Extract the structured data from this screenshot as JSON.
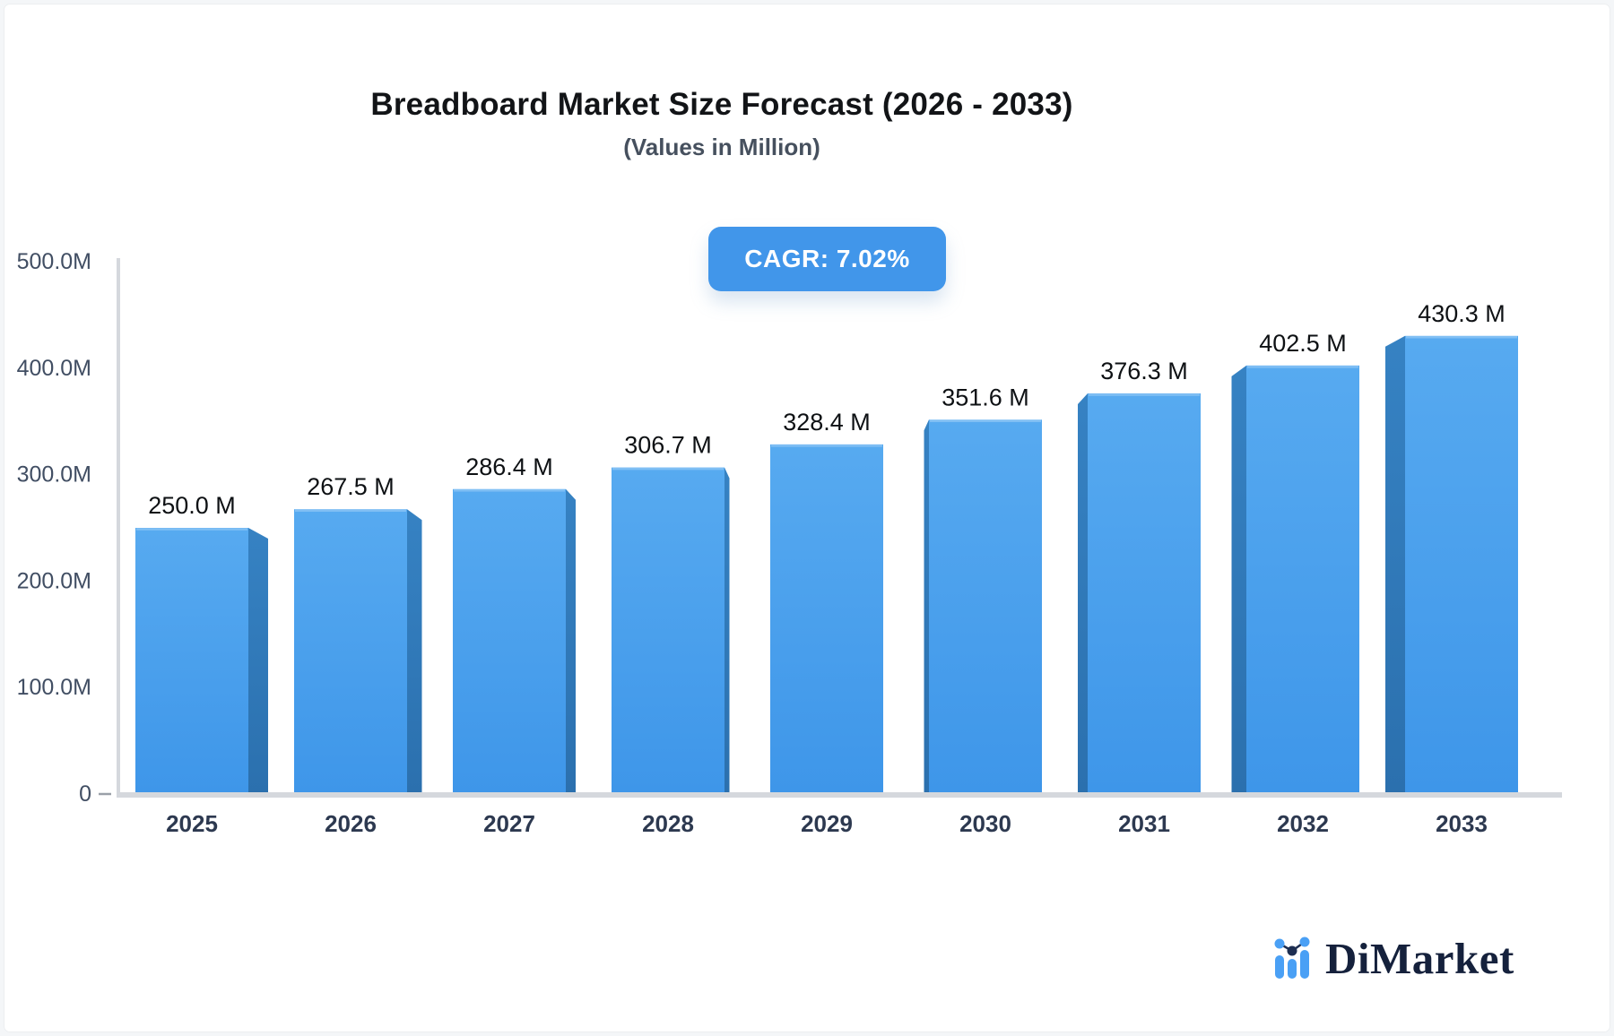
{
  "header": {
    "title": "Breadboard Market Size Forecast (2026 - 2033)",
    "subtitle": "(Values in Million)",
    "cagr_badge": "CAGR: 7.02%"
  },
  "chart_data": {
    "type": "bar",
    "title": "Breadboard Market Size Forecast (2026 - 2033)",
    "subtitle": "(Values in Million)",
    "unit": "Million",
    "cagr_percent": "7.02%",
    "categories": [
      "2025",
      "2026",
      "2027",
      "2028",
      "2029",
      "2030",
      "2031",
      "2032",
      "2033"
    ],
    "values": [
      250.0,
      267.5,
      286.4,
      306.7,
      328.4,
      351.6,
      376.3,
      402.5,
      430.3
    ],
    "value_labels": [
      "250.0 M",
      "267.5 M",
      "286.4 M",
      "306.7 M",
      "328.4 M",
      "351.6 M",
      "376.3 M",
      "402.5 M",
      "430.3 M"
    ],
    "y_ticks": [
      {
        "value": 0,
        "label": "0"
      },
      {
        "value": 100,
        "label": "100.0M"
      },
      {
        "value": 200,
        "label": "200.0M"
      },
      {
        "value": 300,
        "label": "300.0M"
      },
      {
        "value": 400,
        "label": "400.0M"
      },
      {
        "value": 500,
        "label": "500.0M"
      }
    ],
    "ylim": [
      0,
      500
    ],
    "xlabel": "",
    "ylabel": "",
    "grid": false,
    "legend": false,
    "bar_style": "3d-perspective",
    "colors": {
      "bar_face_top": "#57aaf0",
      "bar_face_bottom": "#3e96e9",
      "bar_side_top": "#3682c3",
      "bar_side_bottom": "#2b70ae",
      "bar_top_highlight": "#8ec7f6",
      "badge_bg": "#4196ea",
      "axis_line": "#d5d8dd",
      "tick_dash": "#9aa0a8",
      "value_label": "#0e1114",
      "y_tick_label": "#414e63",
      "x_tick_label": "#2d3950"
    }
  },
  "logo": {
    "text": "DiMarket",
    "mark_icon": "bar-chart-logo-icon",
    "mark_bar_color": "#4aa0f5",
    "mark_line_color": "#1d2e52"
  }
}
